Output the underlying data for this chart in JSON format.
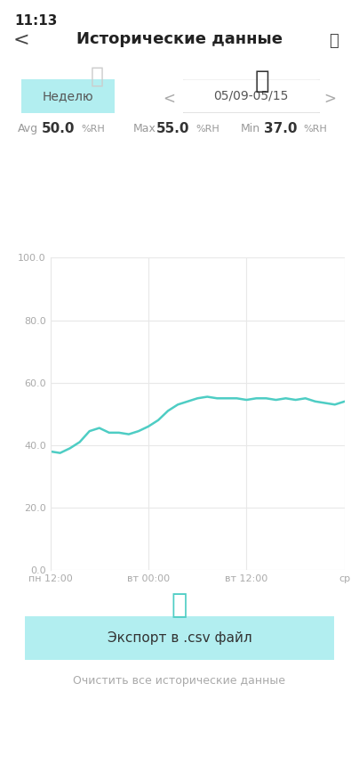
{
  "title": "Исторические данные",
  "time": "11:13",
  "date_range": "05/09-05/15",
  "period_label": "Неделю",
  "avg_label": "Avg",
  "avg_value": "50.0",
  "max_label": "Max",
  "max_value": "55.0",
  "min_label": "Min",
  "min_value": "37.0",
  "unit": "%RH",
  "yticks": [
    0.0,
    20.0,
    40.0,
    60.0,
    80.0,
    100.0
  ],
  "xtick_labels": [
    "пн 12:00",
    "вт 00:00",
    "вт 12:00",
    "ср"
  ],
  "ylim": [
    0.0,
    100.0
  ],
  "line_color": "#4ECDC4",
  "line_data_x": [
    0,
    1,
    2,
    3,
    4,
    5,
    6,
    7,
    8,
    9,
    10,
    11,
    12,
    13,
    14,
    15,
    16,
    17,
    18,
    19,
    20,
    21,
    22,
    23,
    24,
    25,
    26,
    27,
    28,
    29,
    30
  ],
  "line_data_y": [
    38,
    37.5,
    39,
    41,
    44.5,
    45.5,
    44,
    44,
    43.5,
    44.5,
    46,
    48,
    51,
    53,
    54,
    55,
    55.5,
    55,
    55,
    55,
    54.5,
    55,
    55,
    54.5,
    55,
    54.5,
    55,
    54,
    53.5,
    53,
    54
  ],
  "bg_color": "#FFFFFF",
  "grid_color": "#E8E8E8",
  "axis_text_color": "#AAAAAA",
  "export_btn_label": "Экспорт в .csv файл",
  "clear_label": "Очистить все исторические данные",
  "export_btn_color": "#B2EEF0",
  "navbar_title_color": "#222222",
  "period_btn_color": "#B2EEF0",
  "date_btn_border_color": "#DDDDDD"
}
